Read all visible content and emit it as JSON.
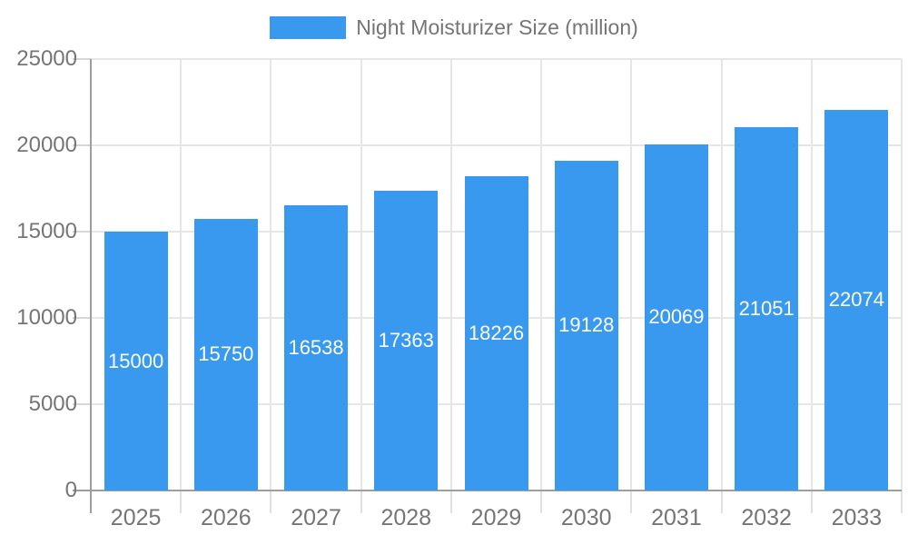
{
  "chart_data": {
    "type": "bar",
    "title": "",
    "legend": "Night Moisturizer Size (million)",
    "legend_position": "top",
    "categories": [
      "2025",
      "2026",
      "2027",
      "2028",
      "2029",
      "2030",
      "2031",
      "2032",
      "2033"
    ],
    "series": [
      {
        "name": "Night Moisturizer Size (million)",
        "values": [
          15000,
          15750,
          16538,
          17363,
          18226,
          19128,
          20069,
          21051,
          22074
        ]
      }
    ],
    "value_labels": [
      "15000",
      "15750",
      "16538",
      "17363",
      "18226",
      "19128",
      "20069",
      "21051",
      "22074"
    ],
    "value_label_position": "inside-center",
    "xlabel": "",
    "ylabel": "",
    "ylim": [
      0,
      25000
    ],
    "yticks": [
      0,
      5000,
      10000,
      15000,
      20000,
      25000
    ],
    "ytick_labels": [
      "0",
      "5000",
      "10000",
      "15000",
      "20000",
      "25000"
    ],
    "grid": "horizontal-and-vertical",
    "colors": {
      "bar": "#3999EE",
      "gridline": "#e6e6e6",
      "axis": "#9e9e9e",
      "tick_text": "#757575",
      "value_label_text": "#ffffff"
    }
  }
}
